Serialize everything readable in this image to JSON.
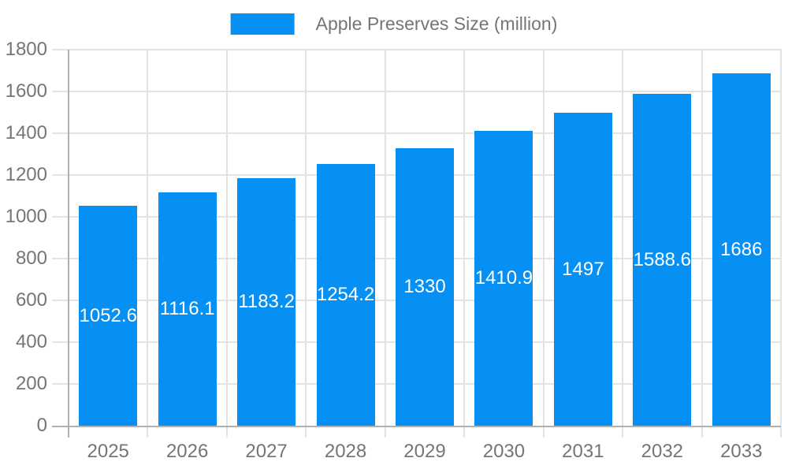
{
  "chart_data": {
    "type": "bar",
    "title": "",
    "legend": [
      "Apple Preserves Size (million)"
    ],
    "legend_position": "top-center",
    "categories": [
      "2025",
      "2026",
      "2027",
      "2028",
      "2029",
      "2030",
      "2031",
      "2032",
      "2033"
    ],
    "values": [
      1052.6,
      1116.1,
      1183.2,
      1254.2,
      1330,
      1410.9,
      1497,
      1588.6,
      1686
    ],
    "xlabel": "",
    "ylabel": "",
    "ylim": [
      0,
      1800
    ],
    "ytick_step": 200,
    "yticks": [
      0,
      200,
      400,
      600,
      800,
      1000,
      1200,
      1400,
      1600,
      1800
    ],
    "grid": true,
    "value_labels_position": "inside-center",
    "colors": {
      "bar": "#0790F3",
      "bar_value_label": "#FFFFFF",
      "grid": "#E3E3E3",
      "axis": "#B0B0B0",
      "text": "#757575",
      "background": "#FFFFFF"
    }
  }
}
